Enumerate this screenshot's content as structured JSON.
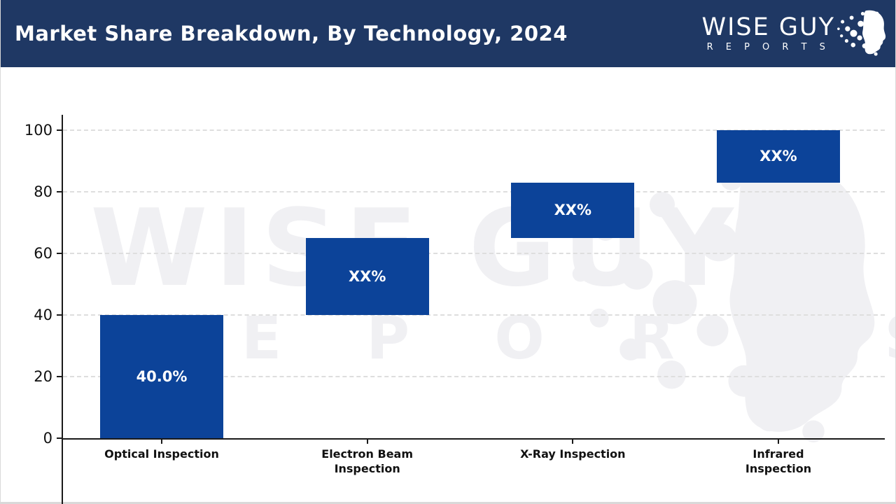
{
  "header": {
    "title": "Market Share Breakdown, By Technology, 2024",
    "logo": {
      "line1": "WISE GUY",
      "line2": "R E P O R T S"
    }
  },
  "watermark": {
    "line1": "WISE GUY",
    "line2": "R E P O R T S"
  },
  "chart_data": {
    "type": "bar",
    "variant": "floating-segment-waterfall",
    "title": "Market Share Breakdown, By Technology, 2024",
    "categories": [
      "Optical Inspection",
      "Electron Beam\nInspection",
      "X-Ray Inspection",
      "Infrared\nInspection"
    ],
    "segments": [
      {
        "category": "Optical Inspection",
        "start": 0,
        "end": 40,
        "label": "40.0%"
      },
      {
        "category": "Electron Beam Inspection",
        "start": 40,
        "end": 65,
        "label": "XX%"
      },
      {
        "category": "X-Ray Inspection",
        "start": 65,
        "end": 83,
        "label": "XX%"
      },
      {
        "category": "Infrared Inspection",
        "start": 83,
        "end": 100,
        "label": "XX%"
      }
    ],
    "xlabel": "",
    "ylabel": "",
    "ylim": [
      0,
      100
    ],
    "yticks": [
      0,
      20,
      40,
      60,
      80,
      100
    ],
    "grid": "horizontal-dashed",
    "legend": "none",
    "bar_color": "#0c4399",
    "bar_label_color": "#ffffff",
    "axis_color": "#1a1a1a",
    "header_bg_color": "#1f3864",
    "watermark_color": "#f0f0f3"
  }
}
